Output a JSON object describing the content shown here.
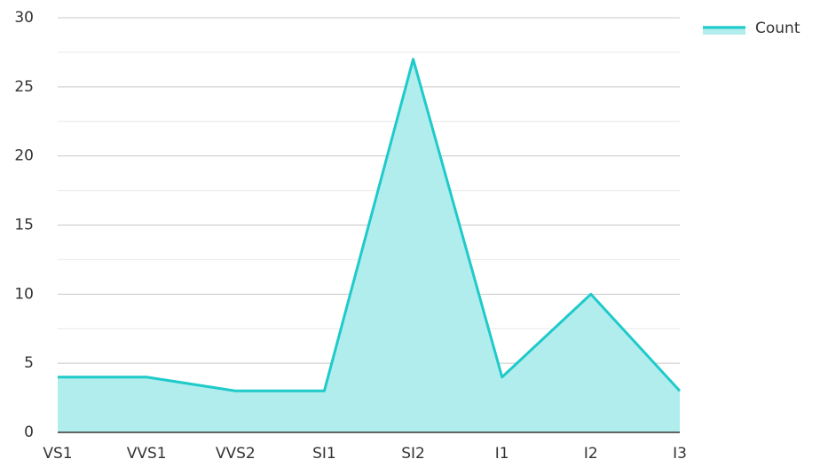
{
  "chart_data": {
    "type": "area",
    "categories": [
      "VS1",
      "VVS1",
      "VVS2",
      "SI1",
      "SI2",
      "I1",
      "I2",
      "I3"
    ],
    "series": [
      {
        "name": "Count",
        "color": "#1fcaca",
        "fill": "#b2eded",
        "values": [
          4,
          4,
          3,
          3,
          27,
          4,
          10,
          3
        ]
      }
    ],
    "ylim": [
      0,
      30
    ],
    "yticks": [
      0,
      5,
      10,
      15,
      20,
      25,
      30
    ],
    "minor_yticks": [
      2.5,
      7.5,
      12.5,
      17.5,
      22.5,
      27.5
    ],
    "grid": true,
    "legend": "top-right"
  }
}
